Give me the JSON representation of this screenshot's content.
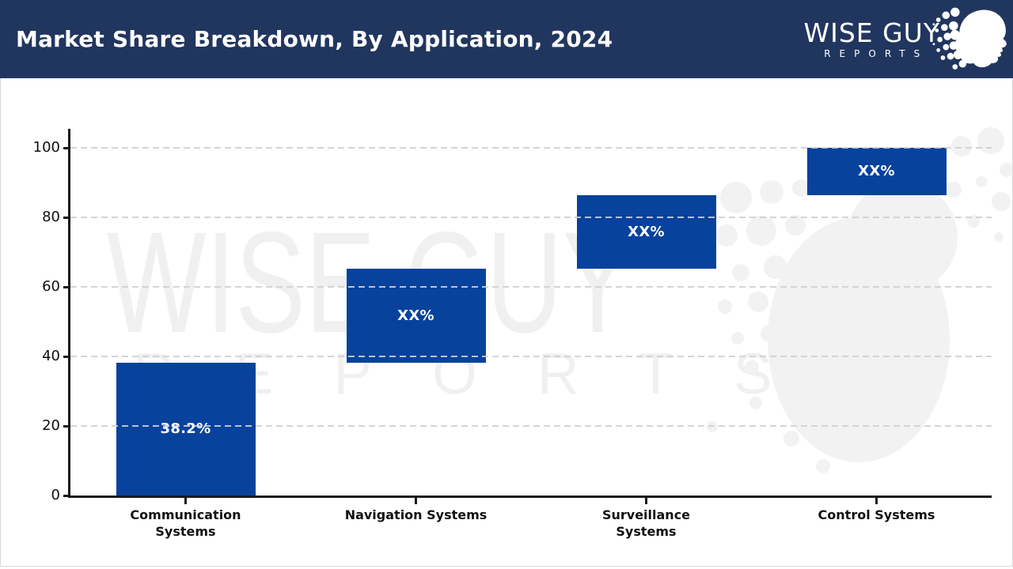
{
  "header": {
    "title": "Market Share Breakdown, By Application, 2024",
    "logo": {
      "line1": "WISE GUY",
      "line2": "REPORTS"
    }
  },
  "watermark": {
    "line1": "WISE GUY",
    "line2": "REPORTS"
  },
  "colors": {
    "header_bg": "#21365f",
    "bar": "#07429c",
    "grid": "#d0d0d0",
    "axis": "#1a1a1a",
    "watermark": "#f0f0f0",
    "value_label": "#ffffff"
  },
  "chart_data": {
    "type": "bar",
    "subtype": "waterfall",
    "title": "Market Share Breakdown, By Application, 2024",
    "categories": [
      "Communication Systems",
      "Navigation Systems",
      "Surveillance Systems",
      "Control Systems"
    ],
    "category_lines": [
      [
        "Communication",
        "Systems"
      ],
      [
        "Navigation Systems"
      ],
      [
        "Surveillance",
        "Systems"
      ],
      [
        "Control Systems"
      ]
    ],
    "segments": [
      {
        "category": "Communication Systems",
        "start": 0,
        "end": 38.2,
        "label": "38.2%"
      },
      {
        "category": "Navigation Systems",
        "start": 38.2,
        "end": 65.2,
        "label": "XX%"
      },
      {
        "category": "Surveillance Systems",
        "start": 65.2,
        "end": 86.4,
        "label": "XX%"
      },
      {
        "category": "Control Systems",
        "start": 86.4,
        "end": 100,
        "label": "XX%"
      }
    ],
    "xlabel": "",
    "ylabel": "",
    "ylim": [
      0,
      100
    ],
    "yticks": [
      0,
      20,
      40,
      60,
      80,
      100
    ],
    "grid": "horizontal dashed, drawn over bars",
    "legend": "none",
    "bar_color": "#07429c",
    "label_color": "#ffffff"
  }
}
